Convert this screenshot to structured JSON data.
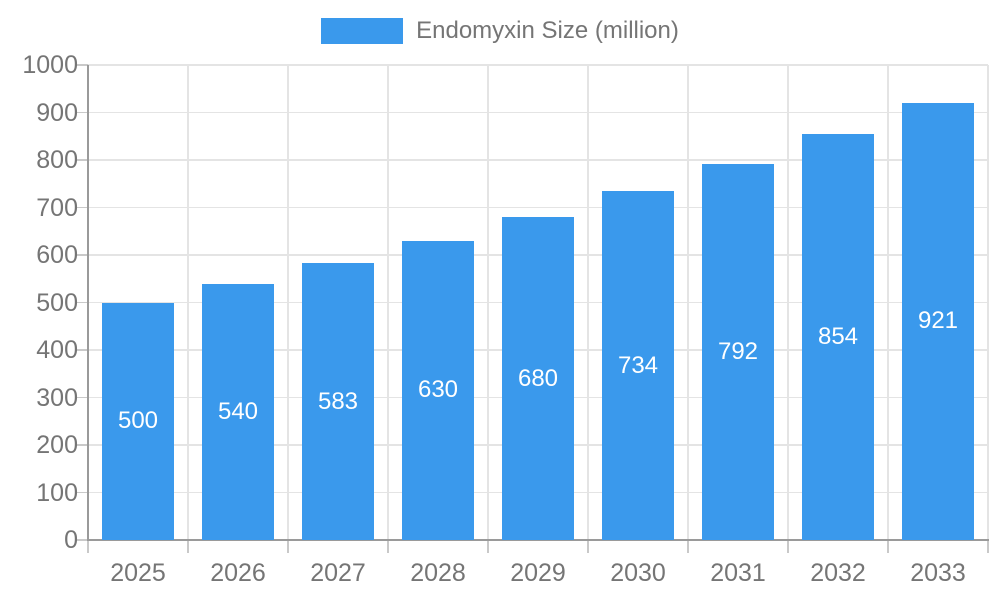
{
  "chart_data": {
    "type": "bar",
    "title": "",
    "series_label": "Endomyxin Size (million)",
    "categories": [
      "2025",
      "2026",
      "2027",
      "2028",
      "2029",
      "2030",
      "2031",
      "2032",
      "2033"
    ],
    "values": [
      500,
      540,
      583,
      630,
      680,
      734,
      792,
      854,
      921
    ],
    "xlabel": "",
    "ylabel": "",
    "ylim": [
      0,
      1000
    ],
    "ytick_step": 100,
    "grid": true,
    "legend_position": "top",
    "value_labels": "centered-inside-bars",
    "colors": {
      "bar": "#3A99EC",
      "value_label": "#ffffff",
      "axis_text": "#757575",
      "grid_line": "#E4E4E4",
      "axis_line": "#9A9A9A",
      "tick_mark": "#C9C9C9"
    }
  }
}
